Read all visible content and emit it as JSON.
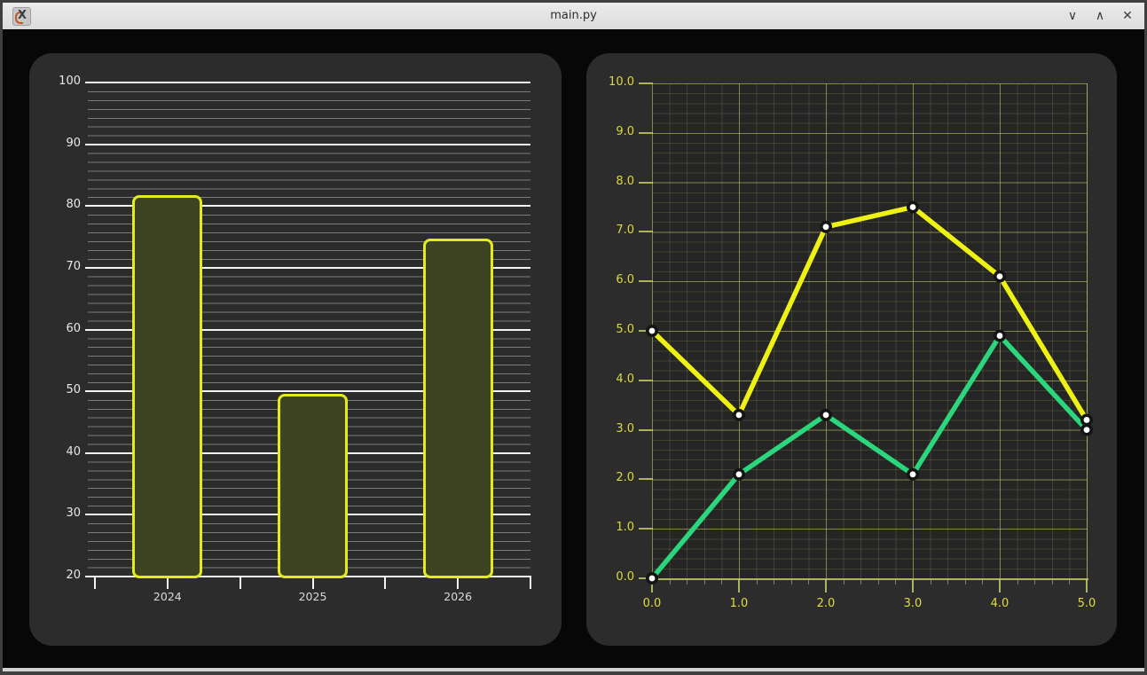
{
  "window": {
    "title": "main.py",
    "icon": "xterm-x-icon",
    "controls": [
      {
        "name": "minimize",
        "glyph": "∨"
      },
      {
        "name": "maximize",
        "glyph": "∧"
      },
      {
        "name": "close",
        "glyph": "✕"
      }
    ]
  },
  "colors": {
    "frame": "#3f3f3f",
    "titlebar_bg": "#e3e3e3",
    "content_bg": "#070707",
    "panel_bg": "#2c2c2c",
    "bar_fill": "#3e4323",
    "bar_border": "#e3eb1c",
    "line_yellow": "#eef214",
    "line_green": "#2bd67d",
    "marker_fill": "#ffffff",
    "marker_ring": "#141414",
    "left_axis": "#f3f3f3",
    "right_grid": "#6f7245",
    "right_tick_label": "#dcd93e"
  },
  "chart_data": [
    {
      "id": "bar-chart",
      "type": "bar",
      "title": "",
      "categories": [
        "2024",
        "2025",
        "2026"
      ],
      "values": [
        81.7,
        49.6,
        74.7
      ],
      "xlabel": "",
      "ylabel": "",
      "ylim": [
        20,
        100
      ],
      "yticks": [
        100,
        90,
        80,
        70,
        60,
        50,
        40,
        30,
        20
      ],
      "grid": {
        "major": "white horizontal lines every 10 units",
        "minor": "fine gray horizontal lines",
        "legend": "none"
      }
    },
    {
      "id": "line-chart",
      "type": "line",
      "title": "",
      "x": [
        0,
        1,
        2,
        3,
        4,
        5
      ],
      "series": [
        {
          "name": "series-yellow",
          "color": "#eef214",
          "values": [
            5.0,
            3.3,
            7.1,
            7.5,
            6.1,
            3.2
          ]
        },
        {
          "name": "series-green",
          "color": "#2bd67d",
          "values": [
            0.0,
            2.1,
            3.3,
            2.1,
            4.9,
            3.0
          ]
        }
      ],
      "xlabel": "",
      "ylabel": "",
      "xlim": [
        0,
        5
      ],
      "ylim": [
        0,
        10
      ],
      "xtick_labels": [
        "0.0",
        "1.0",
        "2.0",
        "3.0",
        "4.0",
        "5.0"
      ],
      "ytick_labels": [
        "10.0",
        "9.0",
        "8.0",
        "7.0",
        "6.0",
        "5.0",
        "4.0",
        "3.0",
        "2.0",
        "1.0",
        "0.0"
      ],
      "marker": {
        "shape": "circle",
        "fill": "#ffffff",
        "ring": "#141414"
      },
      "grid": {
        "major_every": 1.0,
        "minor_every": 0.2,
        "color": "olive",
        "legend": "none"
      }
    }
  ]
}
